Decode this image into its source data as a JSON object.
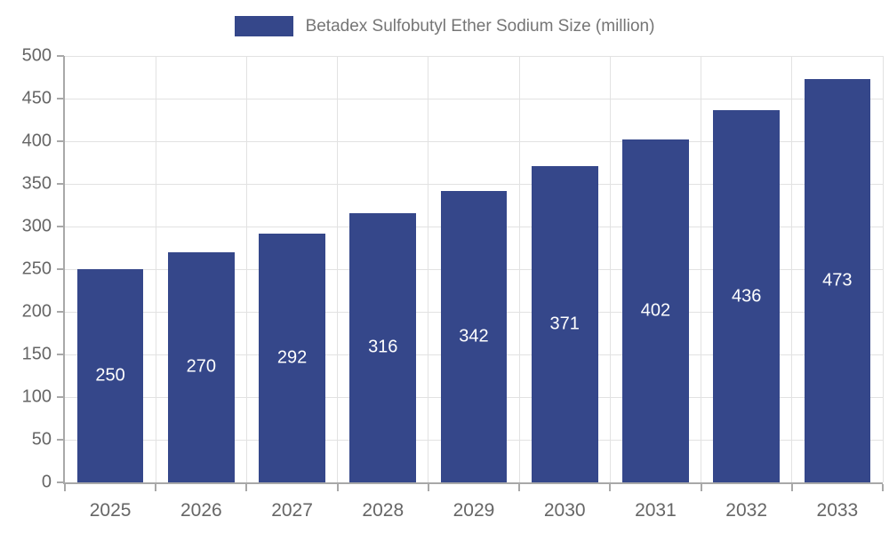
{
  "legend": {
    "label": "Betadex Sulfobutyl Ether Sodium Size (million)"
  },
  "colors": {
    "bar": "#35478A",
    "grid_line": "#e2e2e2",
    "axis_line": "#a8a8a8",
    "axis_text": "#666666",
    "legend_text": "#757575",
    "value_label": "#ffffff",
    "background": "#ffffff"
  },
  "chart_data": {
    "type": "bar",
    "title": "",
    "xlabel": "",
    "ylabel": "",
    "categories": [
      "2025",
      "2026",
      "2027",
      "2028",
      "2029",
      "2030",
      "2031",
      "2032",
      "2033"
    ],
    "series": [
      {
        "name": "Betadex Sulfobutyl Ether Sodium Size (million)",
        "values": [
          250,
          270,
          292,
          316,
          342,
          371,
          402,
          436,
          473
        ]
      }
    ],
    "ylim": [
      0,
      500
    ],
    "ytick_step": 50,
    "yticks": [
      0,
      50,
      100,
      150,
      200,
      250,
      300,
      350,
      400,
      450,
      500
    ],
    "grid": true,
    "legend_position": "top",
    "value_label_position": "inside-center",
    "bar_width_ratio": 0.73
  }
}
